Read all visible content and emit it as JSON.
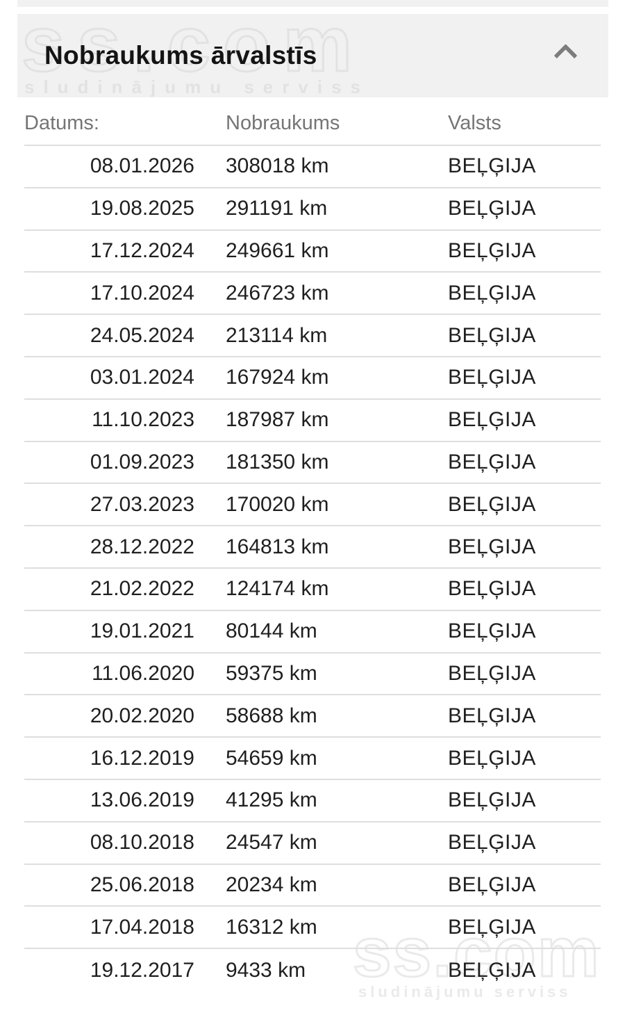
{
  "watermark": {
    "logo": "ss.com",
    "tagline": "sludinājumu serviss"
  },
  "section": {
    "title": "Nobraukums ārvalstīs",
    "collapse_icon": "chevron-up"
  },
  "table": {
    "columns": [
      "Datums:",
      "Nobraukums",
      "Valsts"
    ],
    "rows": [
      {
        "date": "08.01.2026",
        "mileage": "308018 km",
        "country": "BEĻĢIJA"
      },
      {
        "date": "19.08.2025",
        "mileage": "291191 km",
        "country": "BEĻĢIJA"
      },
      {
        "date": "17.12.2024",
        "mileage": "249661 km",
        "country": "BEĻĢIJA"
      },
      {
        "date": "17.10.2024",
        "mileage": "246723 km",
        "country": "BEĻĢIJA"
      },
      {
        "date": "24.05.2024",
        "mileage": "213114 km",
        "country": "BEĻĢIJA"
      },
      {
        "date": "03.01.2024",
        "mileage": "167924 km",
        "country": "BEĻĢIJA"
      },
      {
        "date": "11.10.2023",
        "mileage": "187987 km",
        "country": "BEĻĢIJA"
      },
      {
        "date": "01.09.2023",
        "mileage": "181350 km",
        "country": "BEĻĢIJA"
      },
      {
        "date": "27.03.2023",
        "mileage": "170020 km",
        "country": "BEĻĢIJA"
      },
      {
        "date": "28.12.2022",
        "mileage": "164813 km",
        "country": "BEĻĢIJA"
      },
      {
        "date": "21.02.2022",
        "mileage": "124174 km",
        "country": "BEĻĢIJA"
      },
      {
        "date": "19.01.2021",
        "mileage": "80144 km",
        "country": "BEĻĢIJA"
      },
      {
        "date": "11.06.2020",
        "mileage": "59375 km",
        "country": "BEĻĢIJA"
      },
      {
        "date": "20.02.2020",
        "mileage": "58688 km",
        "country": "BEĻĢIJA"
      },
      {
        "date": "16.12.2019",
        "mileage": "54659 km",
        "country": "BEĻĢIJA"
      },
      {
        "date": "13.06.2019",
        "mileage": "41295 km",
        "country": "BEĻĢIJA"
      },
      {
        "date": "08.10.2018",
        "mileage": "24547 km",
        "country": "BEĻĢIJA"
      },
      {
        "date": "25.06.2018",
        "mileage": "20234 km",
        "country": "BEĻĢIJA"
      },
      {
        "date": "17.04.2018",
        "mileage": "16312 km",
        "country": "BEĻĢIJA"
      },
      {
        "date": "19.12.2017",
        "mileage": "9433 km",
        "country": "BEĻĢIJA"
      }
    ]
  },
  "colors": {
    "card_bg": "#f1f1f1",
    "separator": "#dedede",
    "muted_text": "#757575",
    "data_text": "#1f1f1f",
    "watermark_on_gray": "#e2e2e2",
    "watermark_on_white": "#eaeaea"
  }
}
